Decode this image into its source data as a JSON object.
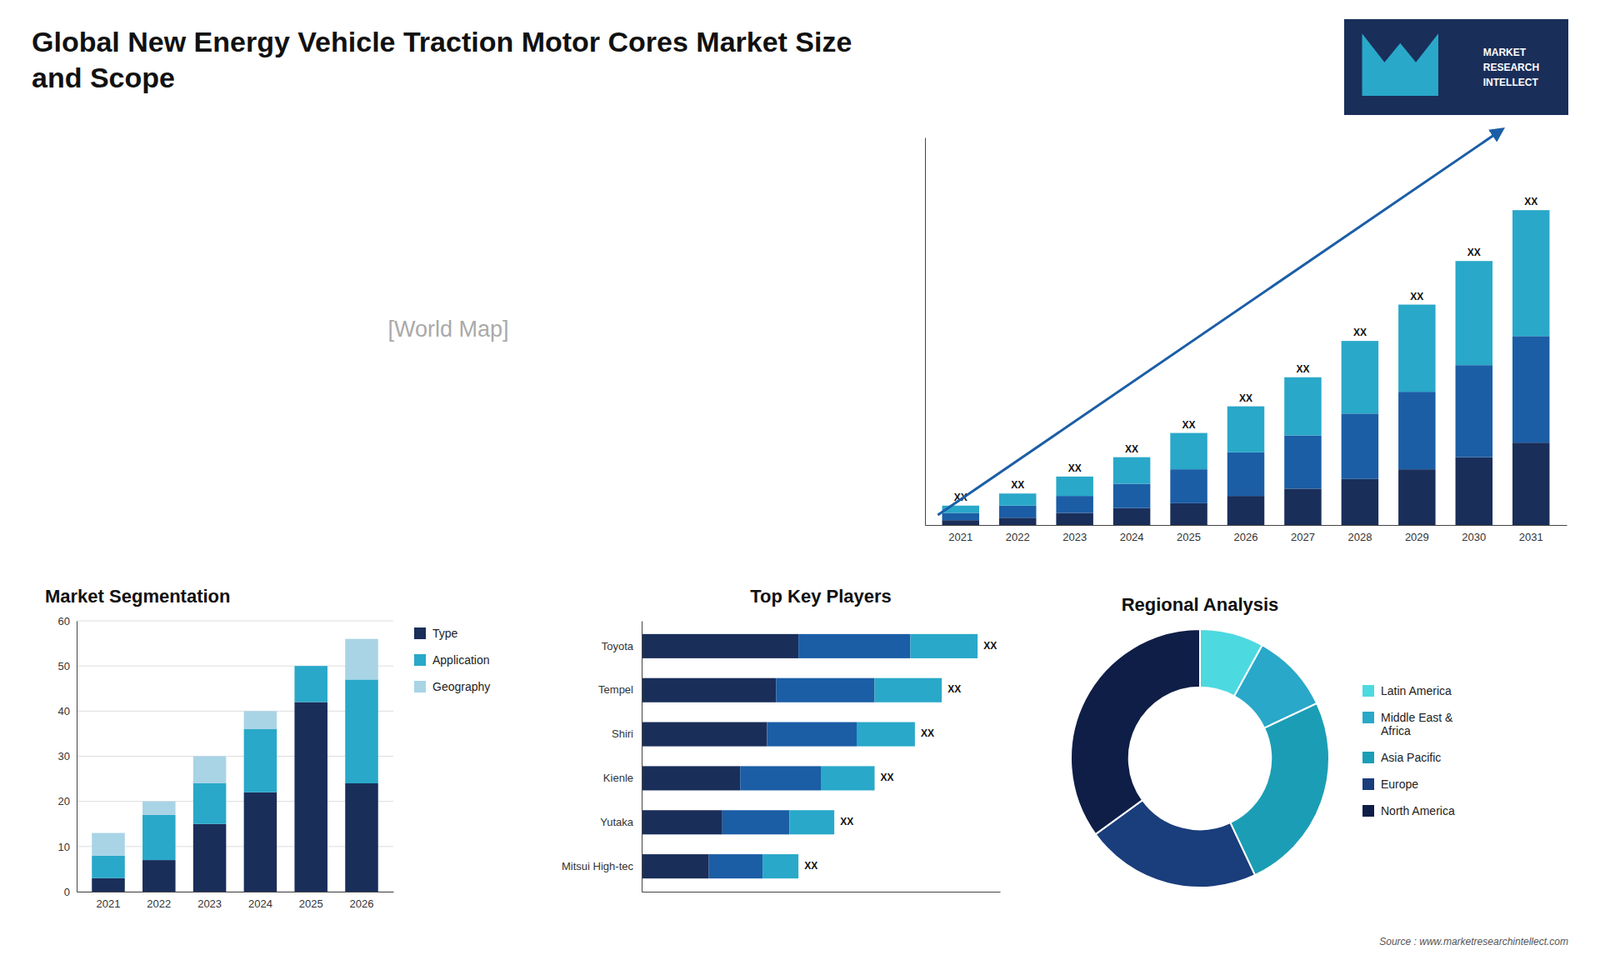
{
  "title": "Global New Energy Vehicle Traction Motor Cores Market Size\nand Scope",
  "annotations": [
    "MARKET\nRESEARCH\nINTELLECT",
    "[World Map]",
    "Source : www.marketresearchintellect.com"
  ],
  "chart_data": [
    {
      "type": "bar",
      "stacked": true,
      "categories": [
        "2021",
        "2022",
        "2023",
        "2024",
        "2025",
        "2026",
        "2027",
        "2028",
        "2029",
        "2030",
        "2031"
      ],
      "series": [
        {
          "color": "#1a2e5a",
          "values": [
            2,
            3,
            5,
            7,
            9,
            12,
            15,
            19,
            23,
            28,
            34
          ]
        },
        {
          "color": "#1b5ea6",
          "values": [
            3,
            5,
            7,
            10,
            14,
            18,
            22,
            27,
            32,
            38,
            44
          ]
        },
        {
          "color": "#29a8c9",
          "values": [
            3,
            5,
            8,
            11,
            15,
            19,
            24,
            30,
            36,
            43,
            52
          ]
        }
      ],
      "ylim": [
        0,
        160
      ],
      "tick_labels": "x",
      "annotations": [
        "XX",
        "XX",
        "XX",
        "XX",
        "XX",
        "XX",
        "XX",
        "XX",
        "XX",
        "XX",
        "XX"
      ]
    },
    {
      "type": "bar",
      "stacked": true,
      "title": "Market Segmentation",
      "categories": [
        "2021",
        "2022",
        "2023",
        "2024",
        "2025",
        "2026"
      ],
      "series": [
        {
          "name": "Type",
          "color": "#1a2e5a",
          "values": [
            3,
            7,
            15,
            22,
            42,
            24
          ]
        },
        {
          "name": "Application",
          "color": "#29a8c9",
          "values": [
            5,
            10,
            9,
            14,
            8,
            23
          ]
        },
        {
          "name": "Geography",
          "color": "#a8d4e6",
          "values": [
            5,
            3,
            6,
            4,
            0,
            9
          ]
        }
      ],
      "ylim": [
        0,
        60
      ],
      "yticks": [
        0,
        10,
        20,
        30,
        40,
        50,
        60
      ],
      "grid": true,
      "legend": "right"
    },
    {
      "type": "bar",
      "stacked": true,
      "orientation": "horizontal",
      "title": "Top Key Players",
      "categories": [
        "Toyota",
        "Tempel",
        "Shiri",
        "Kienle",
        "Yutaka",
        "Mitsui High-tec"
      ],
      "series": [
        {
          "color": "#1a2e5a",
          "values": [
            35,
            30,
            28,
            22,
            18,
            15
          ]
        },
        {
          "color": "#1b5ea6",
          "values": [
            25,
            22,
            20,
            18,
            15,
            12
          ]
        },
        {
          "color": "#29a8c9",
          "values": [
            15,
            15,
            13,
            12,
            10,
            8
          ]
        }
      ],
      "xlim": [
        0,
        80
      ],
      "tick_labels": "y",
      "annotations": [
        "XX",
        "XX",
        "XX",
        "XX",
        "XX",
        "XX"
      ]
    },
    {
      "type": "pie",
      "title": "Regional Analysis",
      "categories": [
        "Latin America",
        "Middle East &\nAfrica",
        "Asia Pacific",
        "Europe",
        "North America"
      ],
      "values": [
        8,
        10,
        25,
        22,
        35
      ],
      "colors": [
        "#4dd9e0",
        "#29a8c9",
        "#1b9eb5",
        "#1a3d7c",
        "#0f1e47"
      ],
      "legend": "right"
    }
  ]
}
